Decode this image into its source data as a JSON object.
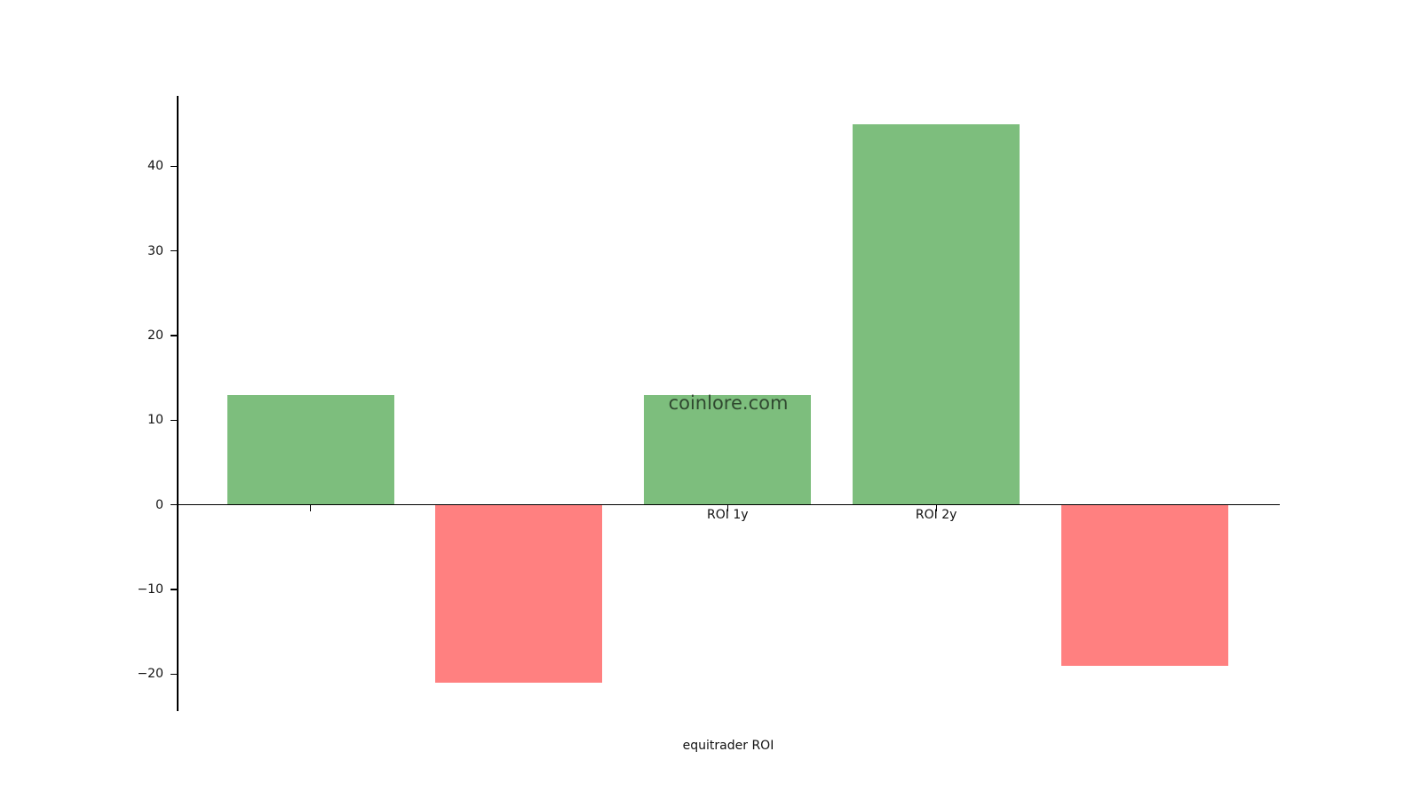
{
  "chart_data": {
    "type": "bar",
    "categories": [
      "",
      "",
      "ROI 1y",
      "ROI 2y",
      ""
    ],
    "values": [
      13,
      -21,
      13,
      45,
      -19
    ],
    "series": [
      {
        "name": "equitrader ROI",
        "values": [
          13,
          -21,
          13,
          45,
          -19
        ]
      }
    ],
    "bar_colors": [
      "#7dbe7d",
      "#ff8080",
      "#7dbe7d",
      "#7dbe7d",
      "#ff8080"
    ],
    "positive_color": "#7dbe7d",
    "negative_color": "#ff8080",
    "title": "",
    "xlabel": "equitrader ROI",
    "ylabel": "",
    "yticks": [
      40,
      30,
      20,
      10,
      0,
      -10,
      -20
    ],
    "ytick_labels": [
      "40",
      "30",
      "20",
      "10",
      "0",
      "−10",
      "−20"
    ],
    "ylim": [
      -24.3,
      48.5
    ],
    "grid": false,
    "legend_position": "none",
    "watermark": "coinlore.com"
  }
}
